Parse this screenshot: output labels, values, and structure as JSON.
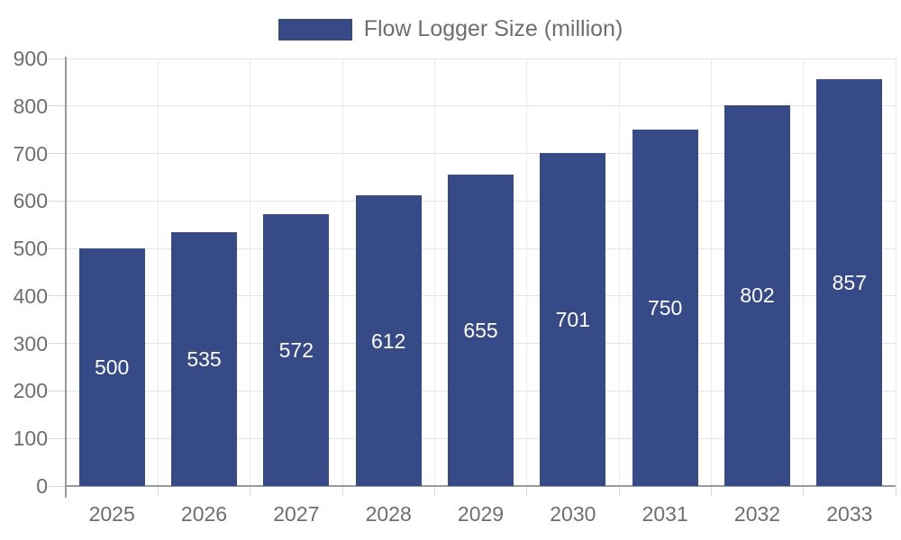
{
  "chart_data": {
    "type": "bar",
    "title": "",
    "legend": "Flow Logger Size (million)",
    "legend_position": "top-center",
    "categories": [
      "2025",
      "2026",
      "2027",
      "2028",
      "2029",
      "2030",
      "2031",
      "2032",
      "2033"
    ],
    "series": [
      {
        "name": "Flow Logger Size (million)",
        "values": [
          500,
          535,
          572,
          612,
          655,
          701,
          750,
          802,
          857
        ]
      }
    ],
    "value_labels_shown": true,
    "xlabel": "",
    "ylabel": "",
    "ylim": [
      0,
      900
    ],
    "yticks": [
      0,
      100,
      200,
      300,
      400,
      500,
      600,
      700,
      800,
      900
    ],
    "grid": true,
    "colors": {
      "bar": "#364a88",
      "value_label": "#ffffff",
      "axis_text": "#6e6e6e",
      "axis_line": "#9a9a9a",
      "gridline": "#e4e4e4",
      "vertical_gridline": "#eaeaea",
      "tick": "#d9d9d9",
      "background": "#ffffff"
    }
  }
}
